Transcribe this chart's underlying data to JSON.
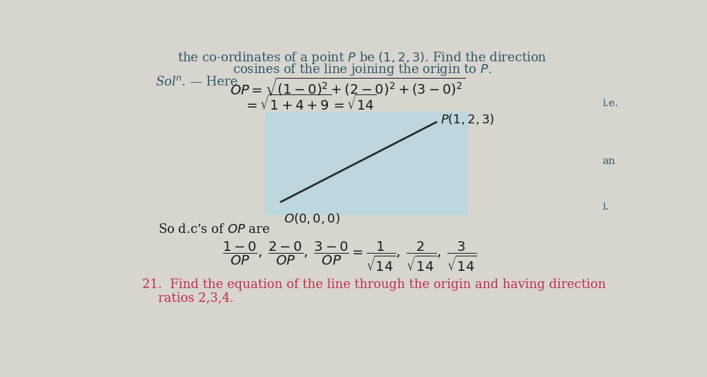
{
  "page_bg": "#d8d4ce",
  "text_color_dark": "#2a5a6a",
  "text_color_black": "#1a1a1a",
  "text_color_red": "#c0304a",
  "diagram_box_color": "#b8d8e0",
  "diagram_line_color": "#2a2a2a",
  "font_size_main": 13,
  "font_size_formula": 14,
  "font_size_small": 11,
  "top1": "the co-ordinates of a point $P$ be $(1,2,3)$. Find the direction",
  "top2": "cosines of the line joining the origin to $P$.",
  "sol_label": "Sol$^{n}$.",
  "sol_dash": "— Here",
  "sol_eq1": "$OP = \\sqrt{(1-0)^2+(2-0)^2+(3-0)^2}$",
  "sol_eq2": "$= \\sqrt{1+4+9} = \\sqrt{14}$",
  "P_label": "$P(1,2,3)$",
  "O_label": "$O(0,0,0)$",
  "dcs_label": "So d.c’s of $OP$ are",
  "ie_label": "i.e.",
  "an_label": "an",
  "i_label": "i.",
  "prob21_a": "21.  Find the equation of the line through the origin and having direction",
  "prob21_b": "ratios 2,3,4."
}
